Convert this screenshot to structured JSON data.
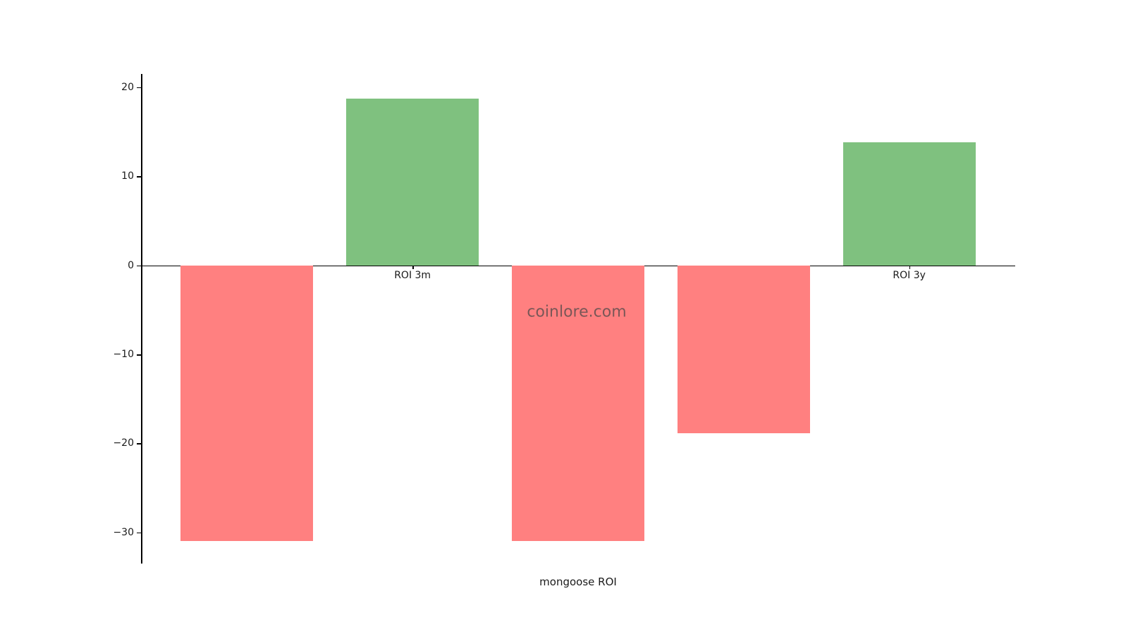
{
  "chart_data": {
    "type": "bar",
    "title": "",
    "xlabel": "mongoose ROI",
    "ylabel": "",
    "categories": [
      "",
      "ROI 3m",
      "",
      "",
      "ROI 3y"
    ],
    "values": [
      -31.0,
      18.7,
      -31.0,
      -18.9,
      13.8
    ],
    "yticks": [
      20,
      10,
      0,
      -10,
      -20,
      -30
    ],
    "ylim": [
      -33.5,
      21.5
    ],
    "xlim": [
      -0.64,
      4.64
    ],
    "bar_width": 0.8,
    "positive_color": "#7fc17f",
    "negative_color": "#ff8080",
    "axis_color": "#000000",
    "grid": false,
    "legend_position": "none"
  },
  "watermark": {
    "text": "coinlore.com"
  }
}
